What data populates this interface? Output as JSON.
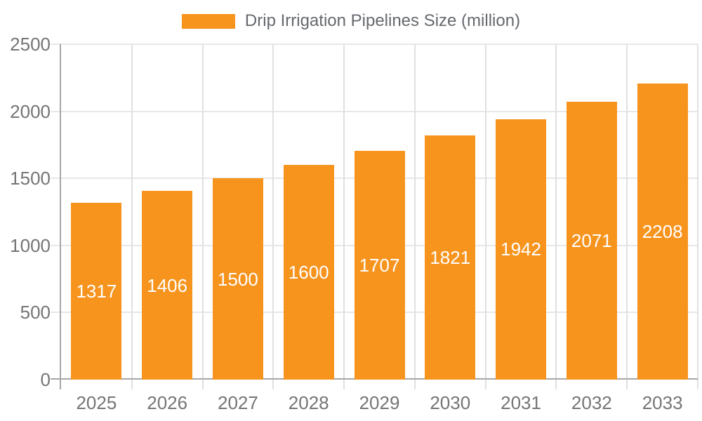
{
  "chart_data": {
    "type": "bar",
    "title": "Drip Irrigation Pipelines Size (million)",
    "categories": [
      "2025",
      "2026",
      "2027",
      "2028",
      "2029",
      "2030",
      "2031",
      "2032",
      "2033"
    ],
    "values": [
      1317,
      1406,
      1500,
      1600,
      1707,
      1821,
      1942,
      2071,
      2208
    ],
    "xlabel": "",
    "ylabel": "",
    "ylim": [
      0,
      2500
    ],
    "yticks": [
      0,
      500,
      1000,
      1500,
      2000,
      2500
    ],
    "grid": true,
    "legend_position": "top",
    "value_labels": "inside-center",
    "colors": {
      "bar": "#F7941E",
      "bar_label": "#FFFFFF",
      "axis_text": "#757575",
      "legend_text": "#65696E",
      "gridline": "#E7E7E7",
      "tick": "#E0E0E0",
      "axis_line": "#A6A6A6"
    }
  }
}
